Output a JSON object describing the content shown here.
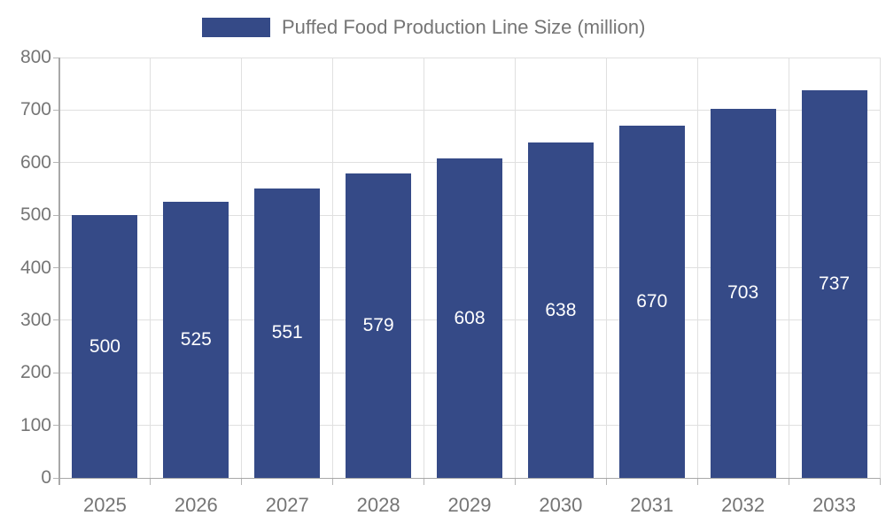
{
  "chart_data": {
    "type": "bar",
    "title": "Puffed Food Production Line Size (million)",
    "categories": [
      "2025",
      "2026",
      "2027",
      "2028",
      "2029",
      "2030",
      "2031",
      "2032",
      "2033"
    ],
    "values": [
      500,
      525,
      551,
      579,
      608,
      638,
      670,
      703,
      737
    ],
    "xlabel": "",
    "ylabel": "",
    "ylim": [
      0,
      800
    ],
    "ytick_step": 100,
    "ytick_labels": [
      "0",
      "100",
      "200",
      "300",
      "400",
      "500",
      "600",
      "700",
      "800"
    ],
    "grid": true,
    "legend_position": "top",
    "colors": {
      "bar": "#354a87",
      "value_label": "#ffffff",
      "tick_label": "#757575",
      "legend_label": "#757575",
      "axis_line": "#a8a8a8",
      "gridline": "#e0e0e0"
    }
  }
}
